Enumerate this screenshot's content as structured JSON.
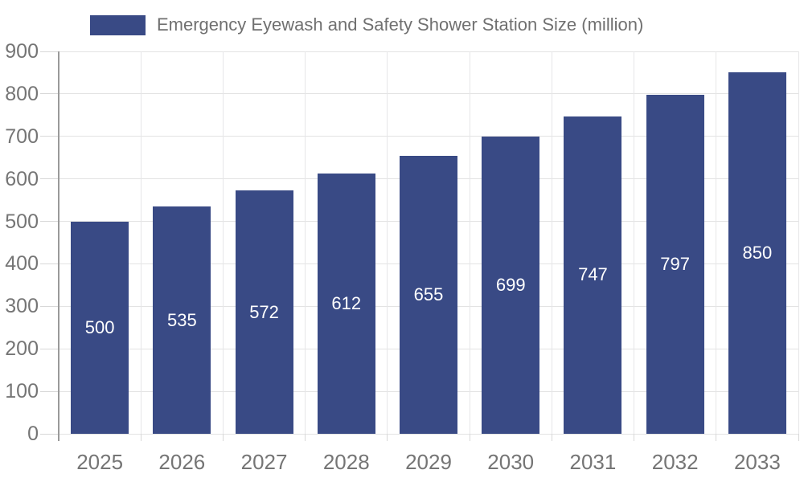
{
  "legend": {
    "label": "Emergency Eyewash and Safety Shower Station Size (million)"
  },
  "chart_data": {
    "type": "bar",
    "title": "Emergency Eyewash and Safety Shower Station Size (million)",
    "series_name": "Emergency Eyewash and Safety Shower Station Size (million)",
    "categories": [
      "2025",
      "2026",
      "2027",
      "2028",
      "2029",
      "2030",
      "2031",
      "2032",
      "2033"
    ],
    "values": [
      500,
      535,
      572,
      612,
      655,
      699,
      747,
      797,
      850
    ],
    "xlabel": "",
    "ylabel": "",
    "ylim": [
      0,
      900
    ],
    "yticks": [
      0,
      100,
      200,
      300,
      400,
      500,
      600,
      700,
      800,
      900
    ],
    "grid": true,
    "legend_position": "top-left",
    "value_labels": "inside-center",
    "colors": {
      "bar": "#394A85",
      "value_label": "#FFFFFF",
      "axis_text": "#757575",
      "legend_text": "#707070",
      "grid_line": "#E3E3E3",
      "axis_line": "#9A9A9A",
      "tick_line": "#D8D8D8",
      "background": "#FFFFFF"
    }
  }
}
